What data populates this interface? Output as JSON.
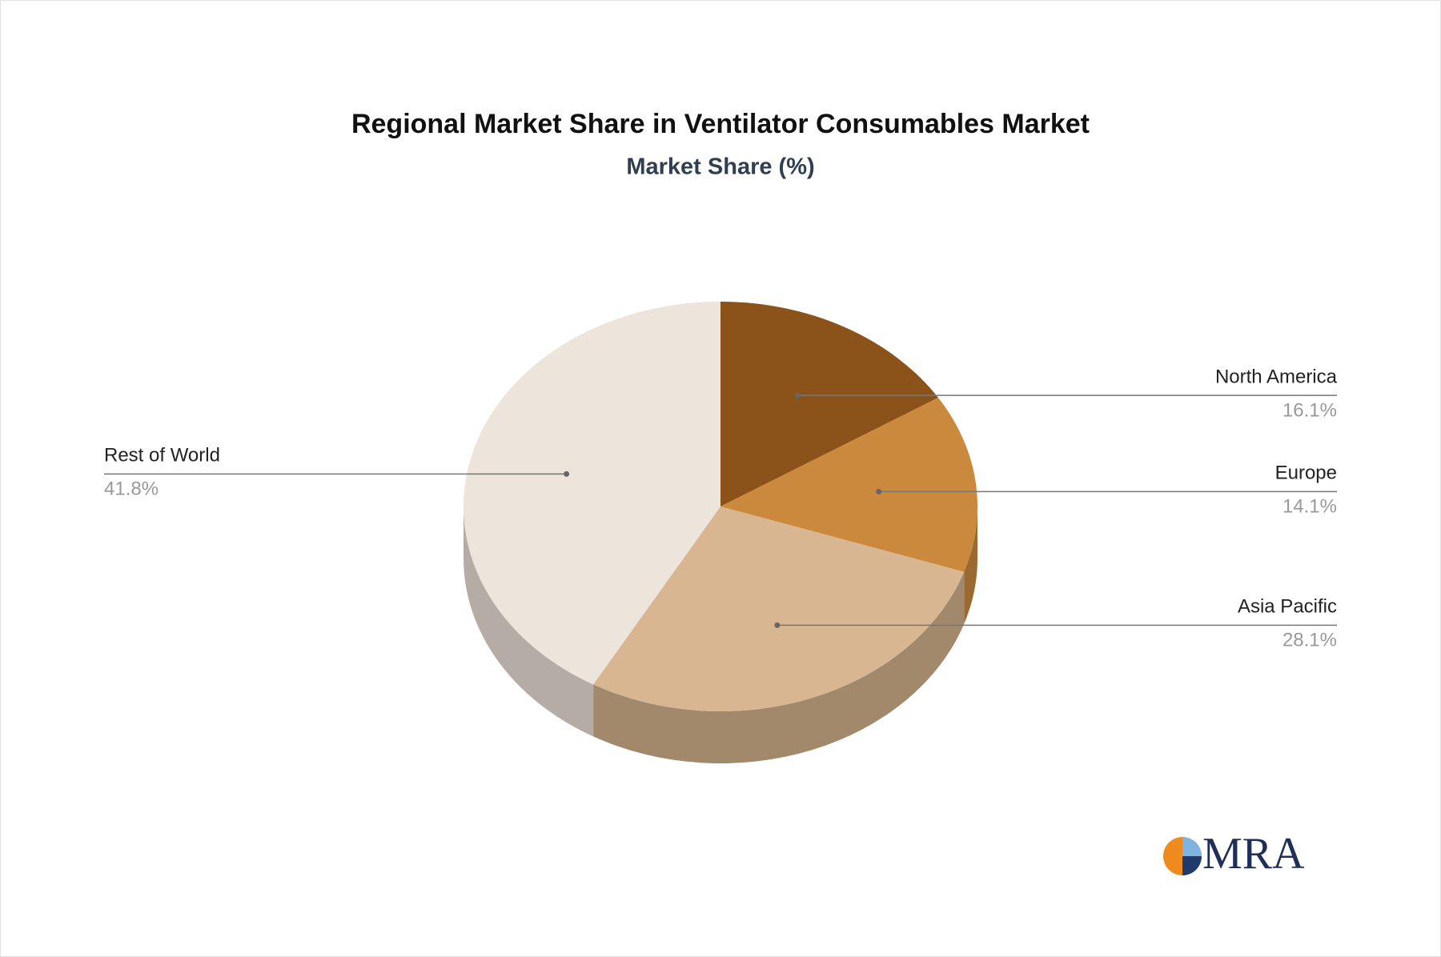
{
  "chart_data": {
    "type": "pie",
    "title": "Regional Market Share in Ventilator Consumables Market",
    "subtitle": "Market Share (%)",
    "categories": [
      "North America",
      "Europe",
      "Asia Pacific",
      "Rest of World"
    ],
    "values": [
      16.1,
      14.1,
      28.1,
      41.8
    ],
    "value_labels": [
      "16.1%",
      "14.1%",
      "28.1%",
      "41.8%"
    ],
    "colors": [
      "#8b5219",
      "#cb893d",
      "#d8b691",
      "#ede4dc"
    ],
    "side_colors": [
      "#6e4214",
      "#9a6a31",
      "#a2896c",
      "#b5aca5"
    ]
  },
  "logo": {
    "text": "MRA"
  }
}
